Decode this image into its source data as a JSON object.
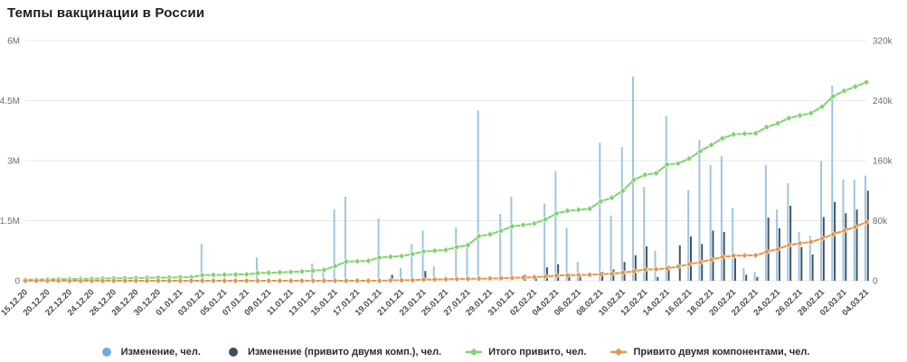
{
  "title": "Темпы вакцинации в России",
  "colors": {
    "change_bar": "#85b6dc",
    "change_two_bar": "#3a4b59",
    "total_line": "#7fd36e",
    "two_comp_line": "#e2964e",
    "grid": "#eaeaea",
    "axis_text": "#6e6e6e",
    "x_text": "#4f4f4f",
    "title_text": "#1d1d1d"
  },
  "legend": [
    {
      "label": "Изменение, чел.",
      "marker": "circle",
      "color": "#74abd8",
      "key": "change"
    },
    {
      "label": "Изменение (привито двумя комп.), чел.",
      "marker": "circle",
      "color": "#414f5c",
      "key": "change-two-comp"
    },
    {
      "label": "Итого привито, чел.",
      "marker": "line-diamond",
      "color": "#7fd36e",
      "key": "total"
    },
    {
      "label": "Привито двумя компонентами, чел.",
      "marker": "line-diamond",
      "color": "#e2964e",
      "key": "two-comp"
    }
  ],
  "chart_data": {
    "type": "mixed-bar-line-dual-axis",
    "x_tick_every": 2,
    "x": [
      "15.12.20",
      "19.12.20",
      "20.12.20",
      "21.12.20",
      "22.12.20",
      "23.12.20",
      "24.12.20",
      "25.12.20",
      "26.12.20",
      "27.12.20",
      "28.12.20",
      "29.12.20",
      "30.12.20",
      "31.12.20",
      "01.01.21",
      "02.01.21",
      "03.01.21",
      "04.01.21",
      "05.01.21",
      "06.01.21",
      "07.01.21",
      "08.01.21",
      "09.01.21",
      "10.01.21",
      "11.01.21",
      "12.01.21",
      "13.01.21",
      "14.01.21",
      "15.01.21",
      "16.01.21",
      "17.01.21",
      "18.01.21",
      "19.01.21",
      "20.01.21",
      "21.01.21",
      "22.01.21",
      "23.01.21",
      "24.01.21",
      "25.01.21",
      "26.01.21",
      "27.01.21",
      "28.01.21",
      "29.01.21",
      "30.01.21",
      "31.01.21",
      "01.02.21",
      "02.02.21",
      "03.02.21",
      "04.02.21",
      "05.02.21",
      "06.02.21",
      "07.02.21",
      "08.02.21",
      "09.02.21",
      "10.02.21",
      "11.02.21",
      "12.02.21",
      "13.02.21",
      "14.02.21",
      "15.02.21",
      "16.02.21",
      "17.02.21",
      "18.02.21",
      "19.02.21",
      "20.02.21",
      "21.02.21",
      "22.02.21",
      "23.02.21",
      "24.02.21",
      "25.02.21",
      "26.02.21",
      "27.02.21",
      "28.02.21",
      "01.03.21",
      "02.03.21",
      "03.03.21",
      "04.03.21"
    ],
    "y_left": {
      "ticks": [
        "0",
        "1.5M",
        "3M",
        "4.5M",
        "6M"
      ],
      "max": 6000000
    },
    "y_right": {
      "ticks": [
        "0",
        "80k",
        "160k",
        "240k",
        "320k"
      ],
      "max": 320000
    },
    "series": [
      {
        "name": "Изменение, чел.",
        "type": "bar",
        "axis": "right",
        "color": "#85b6dc",
        "values": [
          0,
          0,
          0,
          0,
          0,
          0,
          0,
          0,
          0,
          0,
          0,
          0,
          0,
          0,
          0,
          0,
          49000,
          0,
          0,
          0,
          0,
          31000,
          0,
          0,
          0,
          0,
          23000,
          17000,
          95000,
          112000,
          0,
          0,
          83000,
          0,
          17000,
          49000,
          67000,
          19000,
          0,
          71000,
          49000,
          227000,
          0,
          89000,
          112000,
          0,
          0,
          103000,
          146000,
          70000,
          25000,
          0,
          184000,
          87000,
          178000,
          272000,
          125000,
          40000,
          219000,
          0,
          121000,
          188000,
          154000,
          166000,
          97000,
          17000,
          12000,
          154000,
          95000,
          130000,
          65000,
          60000,
          160000,
          260000,
          135000,
          135000,
          140000
        ]
      },
      {
        "name": "Изменение (привито двумя комп.), чел.",
        "type": "bar",
        "axis": "right",
        "color": "#3a4b59",
        "values": [
          0,
          0,
          0,
          0,
          0,
          0,
          0,
          0,
          0,
          0,
          0,
          0,
          0,
          0,
          0,
          0,
          0,
          0,
          0,
          0,
          0,
          0,
          0,
          0,
          0,
          0,
          0,
          0,
          0,
          0,
          0,
          0,
          0,
          8000,
          0,
          0,
          13000,
          0,
          0,
          0,
          0,
          0,
          0,
          0,
          0,
          8000,
          5000,
          18000,
          22000,
          10000,
          6000,
          0,
          12000,
          15000,
          25000,
          34000,
          46000,
          5000,
          20000,
          47000,
          59000,
          49000,
          67000,
          65000,
          30000,
          8000,
          5000,
          84000,
          70000,
          100000,
          45000,
          35000,
          85000,
          105000,
          90000,
          95000,
          120000
        ]
      },
      {
        "name": "Итого привито, чел.",
        "type": "line",
        "axis": "left",
        "color": "#7fd36e",
        "values": [
          28000,
          32000,
          36000,
          40000,
          44000,
          48000,
          52000,
          56000,
          60000,
          64000,
          68000,
          72000,
          76000,
          80000,
          85000,
          90000,
          139000,
          144000,
          150000,
          155000,
          160000,
          191000,
          200000,
          210000,
          220000,
          230000,
          253000,
          270000,
          365000,
          477000,
          487000,
          497000,
          580000,
          600000,
          617000,
          666000,
          733000,
          752000,
          770000,
          841000,
          890000,
          1117000,
          1160000,
          1249000,
          1361000,
          1395000,
          1430000,
          1533000,
          1679000,
          1749000,
          1774000,
          1800000,
          1984000,
          2071000,
          2249000,
          2521000,
          2646000,
          2686000,
          2905000,
          2930000,
          3051000,
          3239000,
          3393000,
          3559000,
          3656000,
          3673000,
          3685000,
          3839000,
          3934000,
          4064000,
          4129000,
          4189000,
          4349000,
          4609000,
          4744000,
          4850000,
          4960000
        ]
      },
      {
        "name": "Привито двумя компонентами, чел.",
        "type": "line",
        "axis": "left",
        "color": "#e2964e",
        "values": [
          0,
          0,
          0,
          0,
          0,
          0,
          0,
          0,
          0,
          0,
          0,
          0,
          0,
          0,
          0,
          0,
          0,
          0,
          0,
          0,
          0,
          0,
          0,
          0,
          0,
          0,
          0,
          0,
          0,
          0,
          0,
          0,
          0,
          10000,
          13000,
          16000,
          29000,
          33000,
          37000,
          42000,
          47000,
          52000,
          57000,
          63000,
          72000,
          80000,
          88000,
          106000,
          128000,
          138000,
          144000,
          150000,
          162000,
          177000,
          202000,
          236000,
          282000,
          287000,
          307000,
          354000,
          413000,
          462000,
          529000,
          594000,
          624000,
          632000,
          637000,
          721000,
          791000,
          891000,
          936000,
          971000,
          1056000,
          1161000,
          1251000,
          1346000,
          1466000
        ]
      }
    ]
  }
}
